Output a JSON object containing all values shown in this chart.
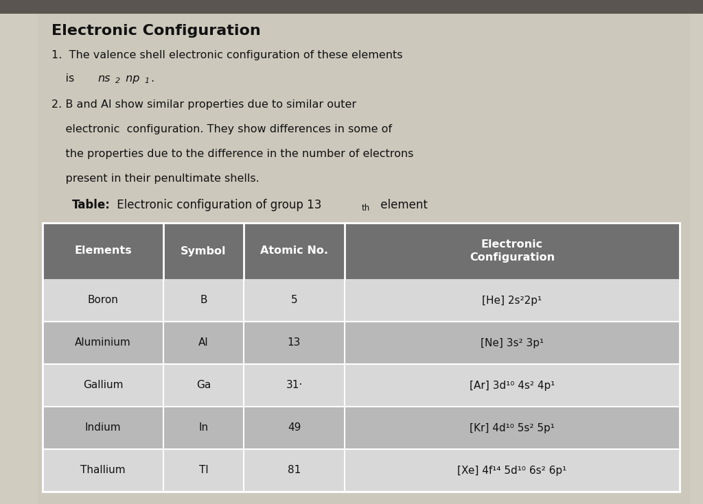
{
  "title": "Electronic Configuration",
  "point1_line1": "1.  The valence shell electronic configuration of these elements",
  "point1_line2_prefix": "    is ",
  "point2_line1": "2. B and Al show similar properties due to similar outer",
  "point2_line2": "    electronic  configuration. They show differences in some of",
  "point2_line3": "    the properties due to the difference in the number of electrons",
  "point2_line4": "    present in their penultimate shells.",
  "table_caption_bold": "Table:",
  "table_caption_rest": " Electronic configuration of group 13",
  "table_caption_sup": "th",
  "table_caption_end": " element",
  "header_bg": "#707070",
  "header_text_color": "#ffffff",
  "row_bg_dark": "#b8b8b8",
  "row_bg_light": "#d8d8d8",
  "col_headers": [
    "Elements",
    "Symbol",
    "Atomic No.",
    "Electronic\nConfiguration"
  ],
  "rows": [
    [
      "Boron",
      "B",
      "5",
      "[He] 2s²2p¹"
    ],
    [
      "Aluminium",
      "Al",
      "13",
      "[Ne] 3s² 3p¹"
    ],
    [
      "Gallium",
      "Ga",
      "31·",
      "[Ar] 3d¹⁰ 4s² 4p¹"
    ],
    [
      "Indium",
      "In",
      "49",
      "[Kr] 4d¹⁰ 5s² 5p¹"
    ],
    [
      "Thallium",
      "Tl",
      "81",
      "[Xe] 4f¹⁴ 5d¹⁰ 6s² 6p¹"
    ]
  ],
  "background_color": "#d0ccc0",
  "page_color": "#c8c4b8",
  "top_bar_color": "#5a5550"
}
